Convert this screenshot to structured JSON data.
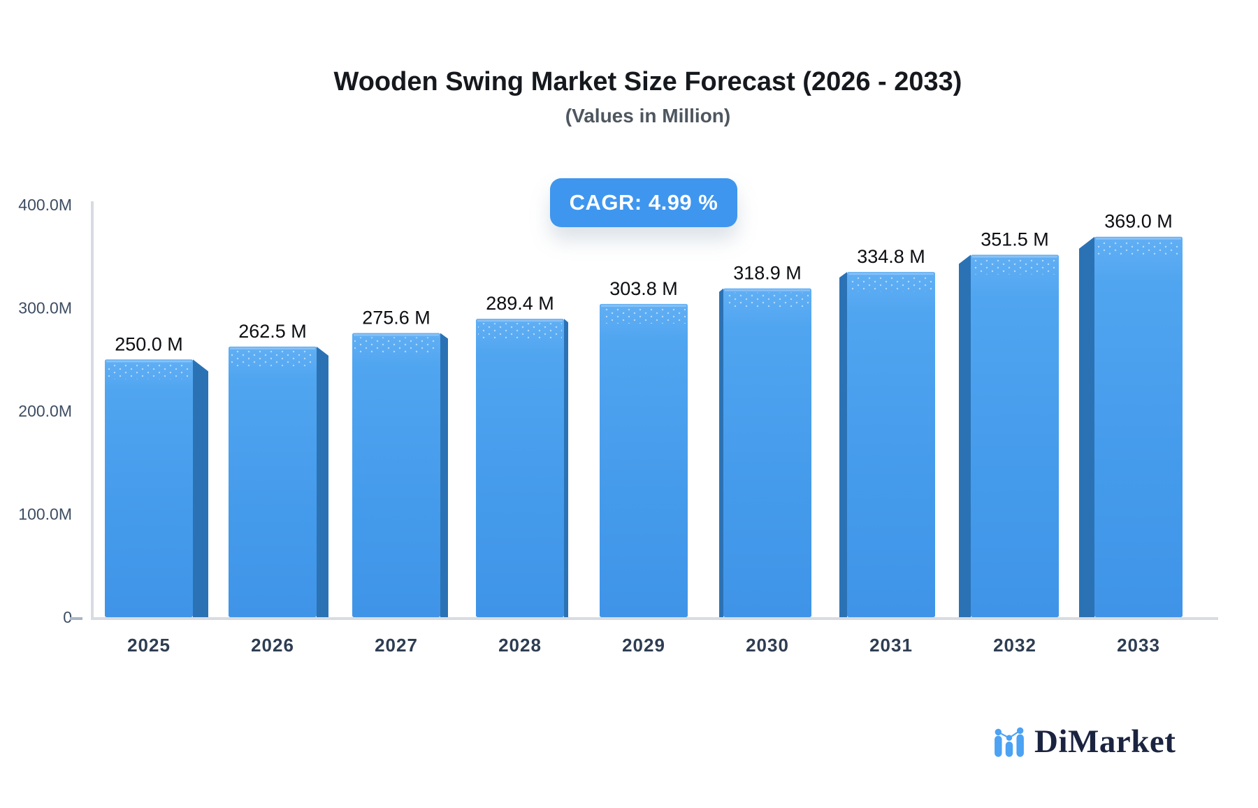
{
  "header": {
    "title": "Wooden Swing Market Size Forecast (2026 - 2033)",
    "subtitle": "(Values in Million)",
    "cagr_badge": "CAGR: 4.99 %"
  },
  "chart_data": {
    "type": "bar",
    "title": "Wooden Swing Market Size Forecast (2026 - 2033)",
    "subtitle": "(Values in Million)",
    "unit": "Million",
    "cagr_percent": 4.99,
    "categories": [
      "2025",
      "2026",
      "2027",
      "2028",
      "2029",
      "2030",
      "2031",
      "2032",
      "2033"
    ],
    "values": [
      250.0,
      262.5,
      275.6,
      289.4,
      303.8,
      318.9,
      334.8,
      351.5,
      369.0
    ],
    "bar_labels": [
      "250.0 M",
      "262.5 M",
      "275.6 M",
      "289.4 M",
      "303.8 M",
      "318.9 M",
      "334.8 M",
      "351.5 M",
      "369.0 M"
    ],
    "y_ticks": [
      {
        "label": "400.0M",
        "value": 400
      },
      {
        "label": "300.0M",
        "value": 300
      },
      {
        "label": "200.0M",
        "value": 200
      },
      {
        "label": "100.0M",
        "value": 100
      },
      {
        "label": "0",
        "value": 0
      }
    ],
    "ylim": [
      0,
      400
    ],
    "grid": false,
    "legend": false,
    "style": "3d-perspective-bars"
  },
  "colors": {
    "bar_face_top": "#61AFF4",
    "bar_face_bottom": "#3F94E8",
    "bar_side": "#2B72B5",
    "badge_background": "#3F96EE",
    "axis_line": "#D8DCE1",
    "y_tick_text": "#3D4D63",
    "x_tick_text": "#2E3D52",
    "value_label_text": "#0C0E12",
    "logo_blue": "#4CA2F3",
    "logo_navy": "#1A2440"
  },
  "logo": {
    "text": "DiMarket"
  }
}
